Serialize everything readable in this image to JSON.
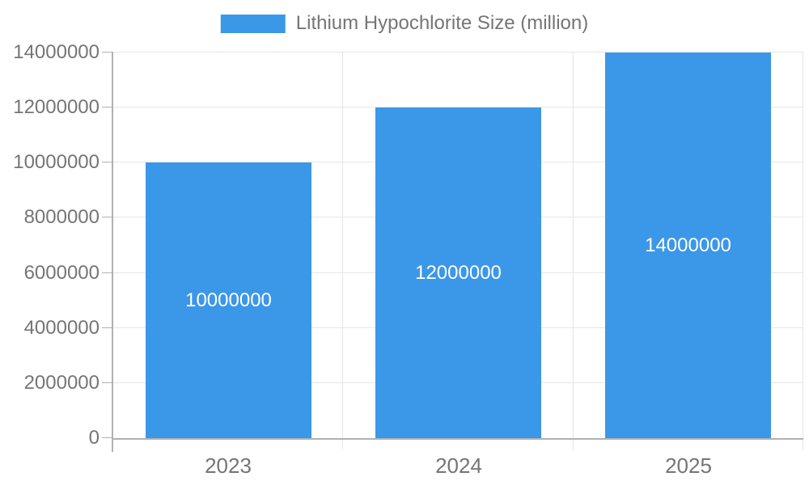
{
  "legend": {
    "label": "Lithium Hypochlorite Size (million)",
    "swatch_color": "#3b97e8"
  },
  "chart_data": {
    "type": "bar",
    "title": "",
    "categories": [
      "2023",
      "2024",
      "2025"
    ],
    "series": [
      {
        "name": "Lithium Hypochlorite Size (million)",
        "values": [
          10000000,
          12000000,
          14000000
        ]
      }
    ],
    "data_labels": [
      "10000000",
      "12000000",
      "14000000"
    ],
    "xlabel": "",
    "ylabel": "",
    "ylim": [
      0,
      14000000
    ],
    "ytick_step": 2000000,
    "ytick_labels": [
      "0",
      "2000000",
      "4000000",
      "6000000",
      "8000000",
      "10000000",
      "12000000",
      "14000000"
    ],
    "grid": true,
    "legend_position": "top-center",
    "bar_color": "#3b97e8",
    "data_label_color": "#ffffff",
    "axis_text_color": "#757575",
    "grid_color": "#e6e6e6",
    "axis_line_color": "#b1b1b1"
  }
}
